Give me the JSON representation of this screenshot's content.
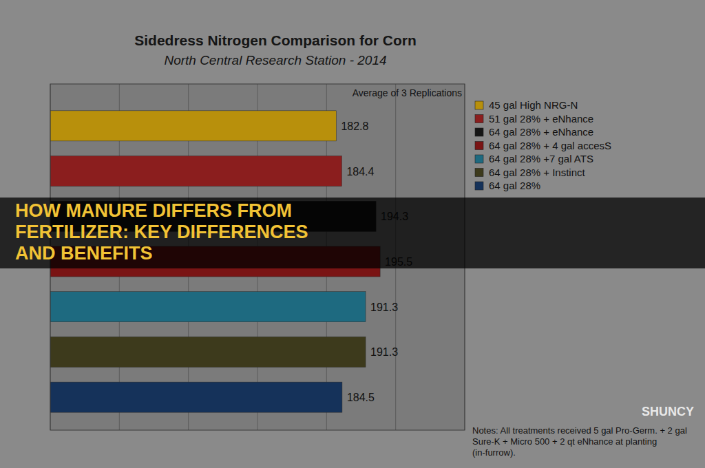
{
  "chart_data": {
    "type": "bar",
    "orientation": "horizontal",
    "title": "Sidedress Nitrogen Comparison for Corn",
    "subtitle": "North Central Research Station - 2014",
    "categories": [
      "45 gal High NRG-N",
      "51 gal 28% + eNhance",
      "64 gal 28% + eNhance",
      "64 gal 28% + 4 gal accesS",
      "64 gal 28% +7 gal ATS",
      "64 gal 28% + Instinct",
      "64 gal 28%"
    ],
    "values": [
      182.8,
      184.4,
      194.3,
      195.5,
      191.3,
      191.3,
      184.5
    ],
    "colors": [
      "#b8900c",
      "#8b1e1e",
      "#151515",
      "#7a1414",
      "#1e6a80",
      "#3d3a1c",
      "#15325a"
    ],
    "xlim": [
      100,
      220
    ],
    "xticks": [
      100,
      120,
      140,
      160,
      180,
      200,
      220
    ],
    "grid": true,
    "legend": "right",
    "data_labels": true,
    "tick_labels": false,
    "annotations": [
      "Average of 3 Replications",
      "Notes:  All treatments received 5 gal Pro-Germ. + 2 gal Sure-K + Micro 500 + 2 qt eNhance at planting (in-furrow)."
    ]
  },
  "banner": {
    "title": "HOW MANURE DIFFERS FROM FERTILIZER: KEY DIFFERENCES AND BENEFITS",
    "logo": "SHUNCY"
  }
}
